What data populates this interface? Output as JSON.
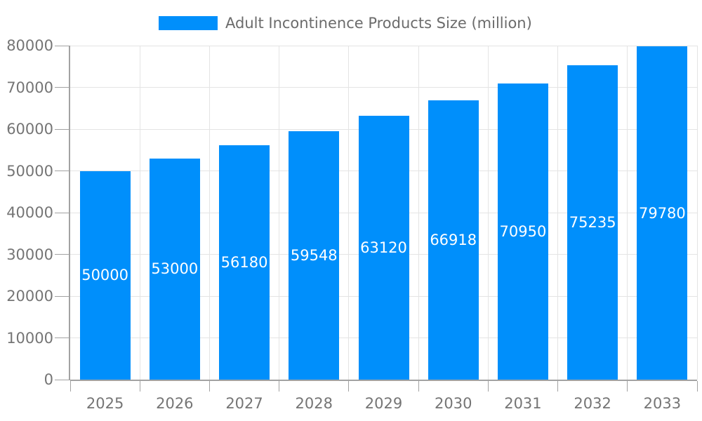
{
  "chart_data": {
    "type": "bar",
    "title": "Adult Incontinence Products Size (million)",
    "legend": {
      "label": "Adult Incontinence Products Size (million)",
      "position": "top"
    },
    "categories": [
      "2025",
      "2026",
      "2027",
      "2028",
      "2029",
      "2030",
      "2031",
      "2032",
      "2033"
    ],
    "values": [
      50000,
      53000,
      56180,
      59548,
      63120,
      66918,
      70950,
      75235,
      79780
    ],
    "series_name": "Adult Incontinence Products Size (million)",
    "xlabel": "",
    "ylabel": "",
    "ylim": [
      0,
      80000
    ],
    "ytick_step": 10000,
    "ytick_labels": [
      "0",
      "10000",
      "20000",
      "30000",
      "40000",
      "50000",
      "60000",
      "70000",
      "80000"
    ],
    "grid": "both",
    "legend_position": "top",
    "colors": {
      "bar": "#008FFB",
      "bar_label_text": "#ffffff",
      "gridline": "#e4e4e4",
      "axis_line": "#a2a2a2",
      "tick": "#a2a2a2",
      "axis_text": "#757575",
      "legend_text": "#6b6b6b",
      "background": "#ffffff"
    }
  }
}
